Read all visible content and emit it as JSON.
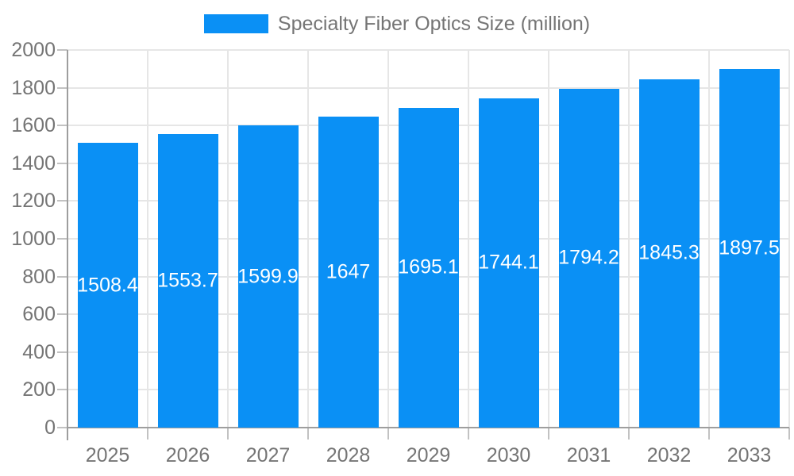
{
  "chart_data": {
    "type": "bar",
    "title": "Specialty Fiber Optics Size (million)",
    "categories": [
      "2025",
      "2026",
      "2027",
      "2028",
      "2029",
      "2030",
      "2031",
      "2032",
      "2033"
    ],
    "values": [
      1508.4,
      1553.7,
      1599.9,
      1647,
      1695.1,
      1744.1,
      1794.2,
      1845.3,
      1897.5
    ],
    "xlabel": "",
    "ylabel": "",
    "ylim": [
      0,
      2000
    ],
    "ytick_step": 200,
    "ytick_labels": [
      "0",
      "200",
      "400",
      "600",
      "800",
      "1000",
      "1200",
      "1400",
      "1600",
      "1800",
      "2000"
    ],
    "grid": true,
    "legend_position": "top-center",
    "data_labels_position": "inside-center",
    "colors": {
      "bar": "#0A90F5",
      "grid": "#e6e6e6",
      "axis": "#9e9e9e",
      "tick": "#c2c2c2",
      "label_text": "#757575",
      "value_label_text": "#ffffff",
      "background": "#ffffff"
    }
  }
}
